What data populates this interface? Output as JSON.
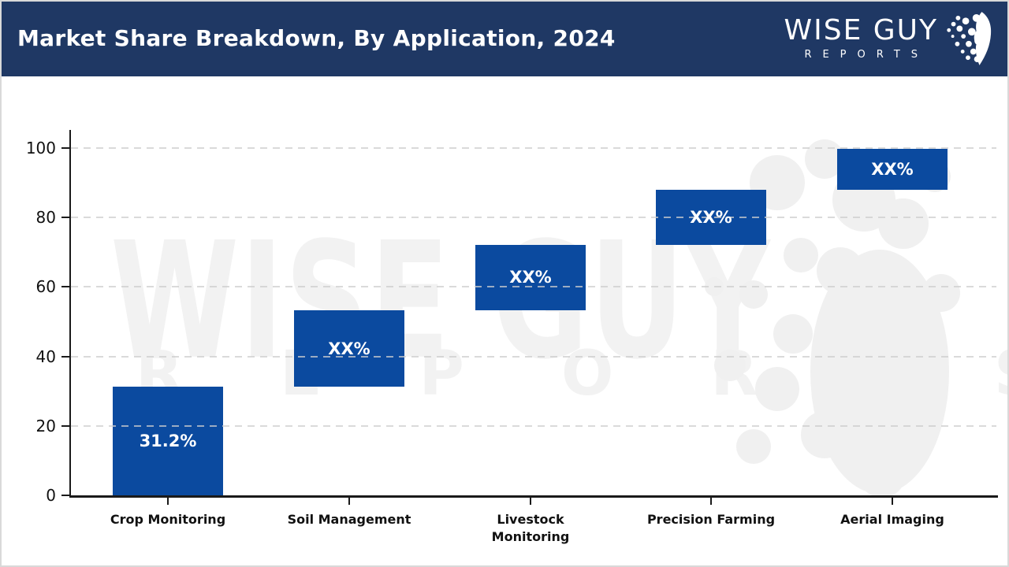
{
  "header": {
    "title": "Market Share Breakdown, By Application, 2024"
  },
  "logo": {
    "line1": "WISE GUY",
    "line2": "REPORTS"
  },
  "watermark": {
    "line1": "WISE GUY",
    "line2": "R E P O R T S"
  },
  "colors": {
    "header_bg": "#1f3864",
    "bar": "#0b4a9f",
    "axis": "#1a1a1a",
    "grid": "#d0d0d0",
    "title_text": "#ffffff",
    "watermark": "#f2f2f2"
  },
  "chart_data": {
    "type": "bar",
    "subtype": "waterfall",
    "title": "Market Share Breakdown, By Application, 2024",
    "categories": [
      "Crop Monitoring",
      "Soil Management",
      "Livestock\nMonitoring",
      "Precision Farming",
      "Aerial Imaging"
    ],
    "segments": [
      {
        "category": "Crop Monitoring",
        "start": 0,
        "end": 31.2,
        "label": "31.2%"
      },
      {
        "category": "Soil Management",
        "start": 31.2,
        "end": 53.3,
        "label": "XX%"
      },
      {
        "category": "Livestock Monitoring",
        "start": 53.3,
        "end": 72.1,
        "label": "XX%"
      },
      {
        "category": "Precision Farming",
        "start": 72.1,
        "end": 88.0,
        "label": "XX%"
      },
      {
        "category": "Aerial Imaging",
        "start": 88.0,
        "end": 99.8,
        "label": "XX%"
      }
    ],
    "xlabel": "",
    "ylabel": "",
    "yticks": [
      0,
      20,
      40,
      60,
      80,
      100
    ],
    "ylim": [
      0,
      107
    ],
    "grid": "dashed-horizontal",
    "legend": "none",
    "bar_color": "#0b4a9f"
  }
}
